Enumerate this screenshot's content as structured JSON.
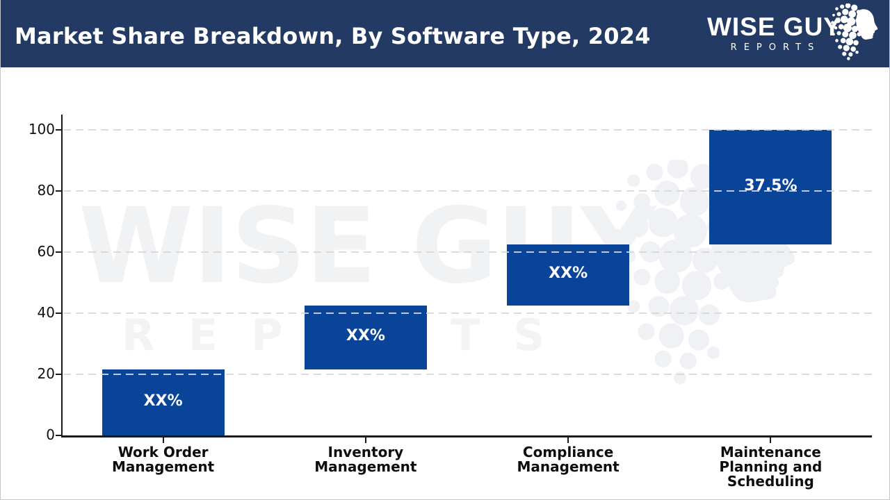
{
  "header": {
    "title": "Market Share Breakdown, By Software Type, 2024",
    "brand": {
      "name": "WISE GUY",
      "sub": "REPORTS"
    }
  },
  "watermark": {
    "line1": "WISE GUY",
    "line2": "REPORTS"
  },
  "colors": {
    "header_bg": "#223A64",
    "header_text": "#FFFFFF",
    "bar": "#0A4499",
    "value_label": "#FFFFFF",
    "grid": "#D9D9D9",
    "axis": "#1A1A1A",
    "watermark": "#F1F2F4",
    "frame_border": "#C8C8C8"
  },
  "chart_data": {
    "type": "bar",
    "subtype": "waterfall",
    "title": "Market Share Breakdown, By Software Type, 2024",
    "categories": [
      [
        "Work Order",
        "Management"
      ],
      [
        "Inventory",
        "Management"
      ],
      [
        "Compliance",
        "Management"
      ],
      [
        "Maintenance",
        "Planning and",
        "Scheduling"
      ]
    ],
    "series": [
      {
        "name": "Market share (%)",
        "segments": [
          {
            "category": "Work Order Management",
            "start": 0,
            "end": 21.5,
            "label": "XX%"
          },
          {
            "category": "Inventory Management",
            "start": 21.5,
            "end": 42.5,
            "label": "XX%"
          },
          {
            "category": "Compliance Management",
            "start": 42.5,
            "end": 62.5,
            "label": "XX%"
          },
          {
            "category": "Maintenance Planning and Scheduling",
            "start": 62.5,
            "end": 100,
            "label": "37.5%"
          }
        ]
      }
    ],
    "ylim": [
      0,
      100
    ],
    "yticks": [
      0,
      20,
      40,
      60,
      80,
      100
    ],
    "grid": true,
    "legend": false,
    "bar_color": "#0A4499",
    "value_label_color": "#FFFFFF"
  }
}
